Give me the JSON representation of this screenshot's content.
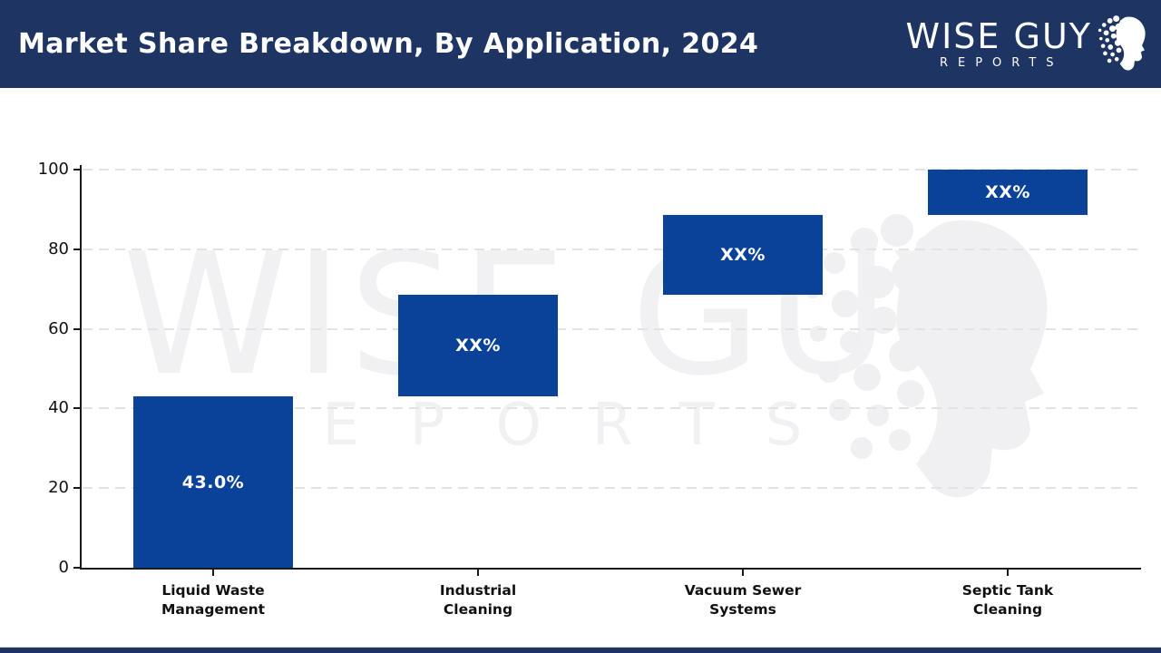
{
  "header": {
    "title": "Market Share Breakdown, By Application, 2024",
    "bg_color": "#1e3563",
    "logo": {
      "line1": "WISE GUY",
      "line2": "REPORTS"
    }
  },
  "watermark": {
    "line1": "WISE GUY",
    "line2": "REPORTS"
  },
  "chart_data": {
    "type": "bar",
    "subtype": "waterfall",
    "title": "Market Share Breakdown, By Application, 2024",
    "xlabel": "",
    "ylabel": "",
    "categories": [
      "Liquid Waste Management",
      "Industrial Cleaning",
      "Vacuum Sewer Systems",
      "Septic Tank Cleaning"
    ],
    "category_lines": [
      [
        "Liquid Waste",
        "Management"
      ],
      [
        "Industrial",
        "Cleaning"
      ],
      [
        "Vacuum Sewer",
        "Systems"
      ],
      [
        "Septic Tank",
        "Cleaning"
      ]
    ],
    "segments": [
      {
        "start": 0,
        "end": 43,
        "label": "43.0%"
      },
      {
        "start": 43,
        "end": 68.5,
        "label": "XX%"
      },
      {
        "start": 68.5,
        "end": 88.5,
        "label": "XX%"
      },
      {
        "start": 88.5,
        "end": 100,
        "label": "XX%"
      }
    ],
    "ylim": [
      0,
      100
    ],
    "yticks": [
      0,
      20,
      40,
      60,
      80,
      100
    ],
    "grid": "horizontal dashed",
    "legend": "none",
    "bar_color": "#0a429a",
    "bar_label_color": "#ffffff",
    "axis_color": "#1a1a1a",
    "gridline_color": "#e3e3e3"
  }
}
